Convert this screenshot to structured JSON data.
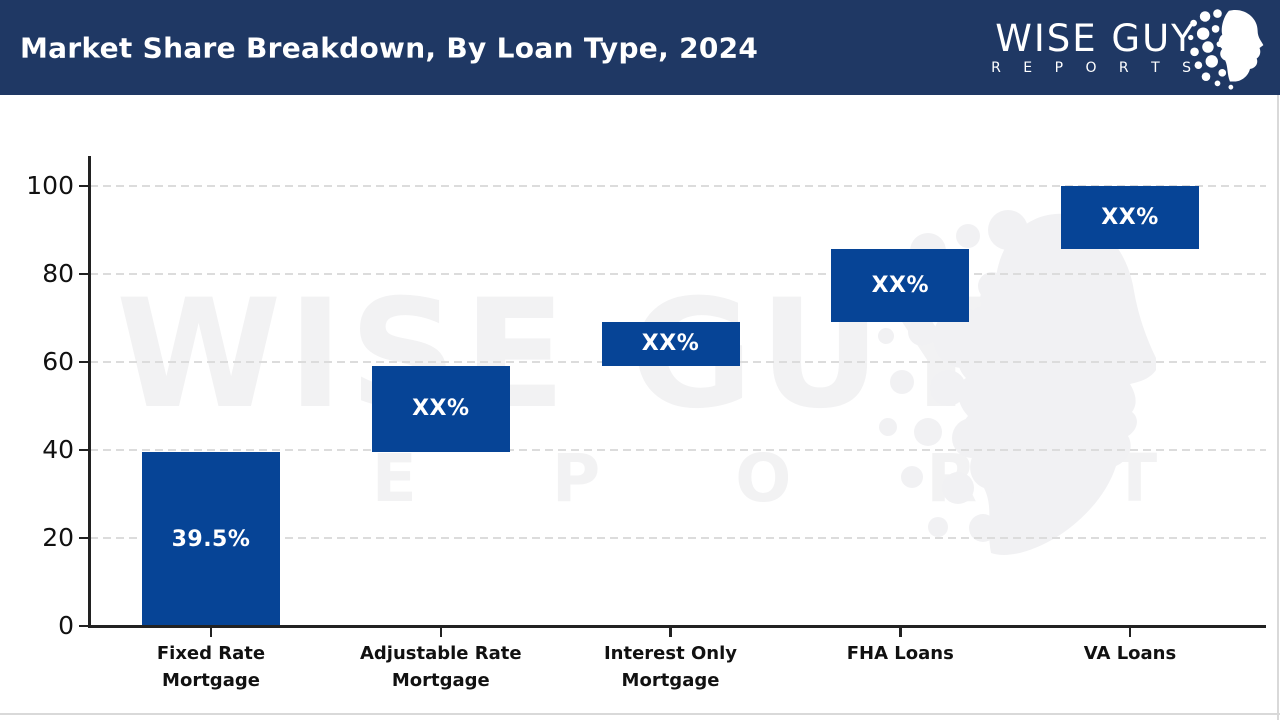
{
  "header": {
    "title": "Market Share Breakdown, By Loan Type, 2024",
    "logo": {
      "line1": "WISE GUY",
      "line2": "R E P O R T S"
    }
  },
  "watermark": {
    "line1": "WISE GUY",
    "line2": "R E P O R T S"
  },
  "colors": {
    "header_bg": "#1f3864",
    "bar": "#064496",
    "grid": "#dcdcdc",
    "axis": "#222222",
    "watermark": "#f2f2f3",
    "bar_label": "#ffffff"
  },
  "chart_data": {
    "type": "bar",
    "subtype": "waterfall",
    "title": "Market Share Breakdown, By Loan Type, 2024",
    "xlabel": "",
    "ylabel": "",
    "ylim": [
      0,
      107
    ],
    "y_ticks": [
      0,
      20,
      40,
      60,
      80,
      100
    ],
    "grid": "horizontal-dashed",
    "legend": "none",
    "categories": [
      "Fixed Rate\nMortgage",
      "Adjustable Rate\nMortgage",
      "Interest Only\nMortgage",
      "FHA Loans",
      "VA Loans"
    ],
    "segments": [
      {
        "category": "Fixed Rate Mortgage",
        "start": 0,
        "end": 39.5,
        "value": 39.5,
        "display": "39.5%"
      },
      {
        "category": "Adjustable Rate Mortgage",
        "start": 39.5,
        "end": 59.2,
        "value": 19.7,
        "display": "XX%"
      },
      {
        "category": "Interest Only Mortgage",
        "start": 59.2,
        "end": 69.2,
        "value": 10.0,
        "display": "XX%"
      },
      {
        "category": "FHA Loans",
        "start": 69.2,
        "end": 85.6,
        "value": 16.4,
        "display": "XX%"
      },
      {
        "category": "VA Loans",
        "start": 85.6,
        "end": 100,
        "value": 14.4,
        "display": "XX%"
      }
    ]
  }
}
